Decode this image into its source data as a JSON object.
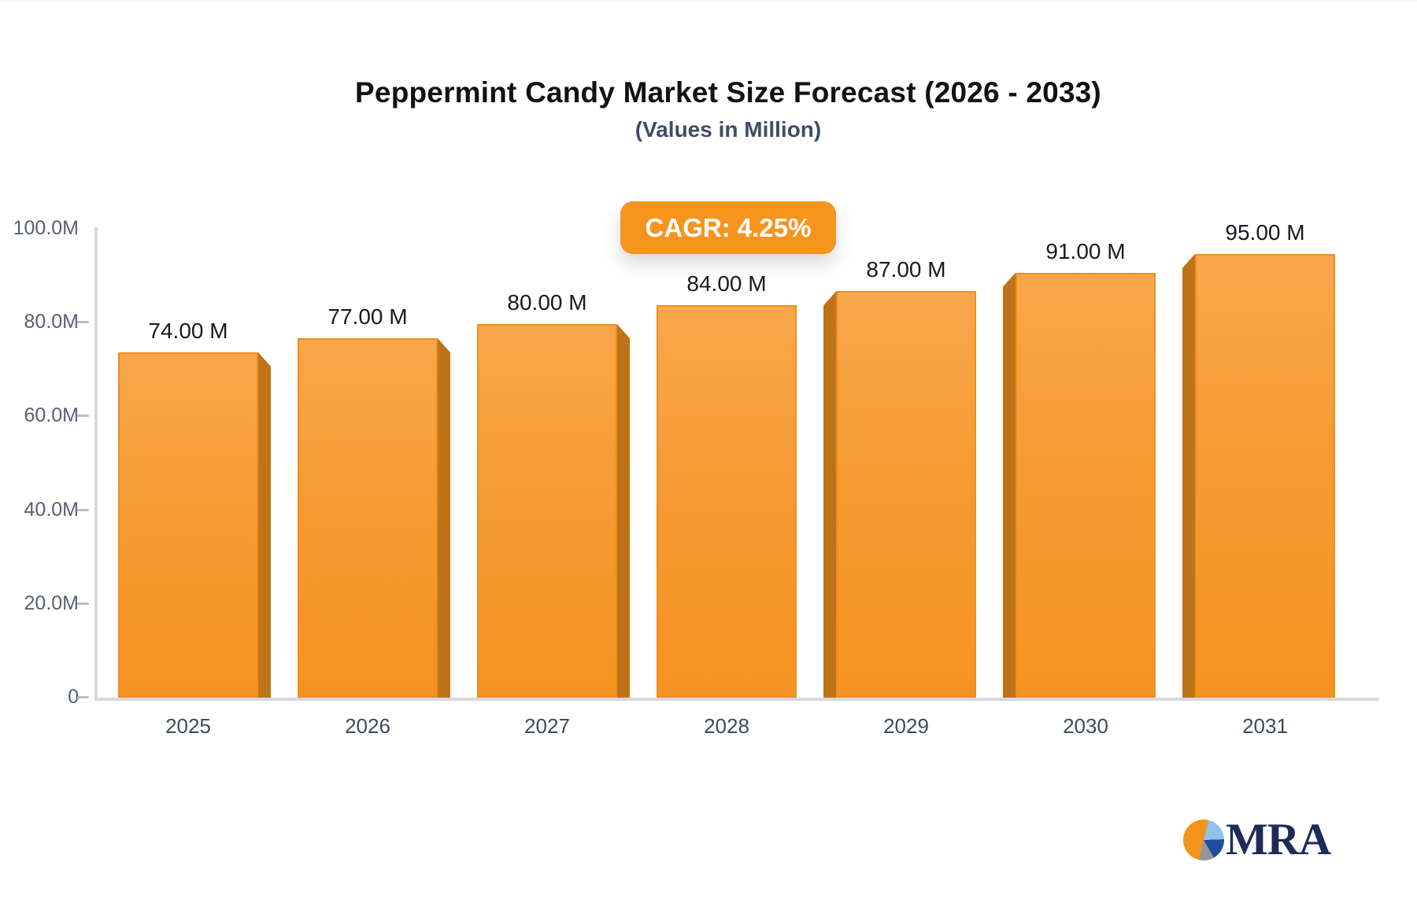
{
  "header": {
    "title": "Peppermint Candy Market Size Forecast (2026 - 2033)",
    "subtitle": "(Values in Million)"
  },
  "badge": {
    "label": "CAGR: 4.25%",
    "bg_color": "#f7941e",
    "text_color": "#ffffff"
  },
  "chart_data": {
    "type": "bar",
    "title": "Peppermint Candy Market Size Forecast (2026 - 2033)",
    "subtitle": "(Values in Million)",
    "categories": [
      "2025",
      "2026",
      "2027",
      "2028",
      "2029",
      "2030",
      "2031"
    ],
    "values": [
      74,
      77,
      80,
      84,
      87,
      91,
      95
    ],
    "value_labels": [
      "74.00 M",
      "77.00 M",
      "80.00 M",
      "84.00 M",
      "87.00 M",
      "91.00 M",
      "95.00 M"
    ],
    "unit": "Million",
    "ylim": [
      0,
      100
    ],
    "y_ticks": [
      "100.0M",
      "80.0M",
      "60.0M",
      "40.0M",
      "20.0M",
      "0"
    ],
    "grid": false,
    "legend": false,
    "style_3d": true,
    "colors": {
      "bar_top": "#f8a74b",
      "bar_bottom": "#f6921f",
      "bar_side": "#bf7318",
      "bar_border": "#ee8e1f",
      "axis_line": "#d5d9df",
      "y_tick_text": "#565f73",
      "x_tick_text": "#3f4a5a",
      "value_label_text": "#181a1f"
    }
  },
  "logo": {
    "text": "MRA",
    "text_color": "#1e2b58",
    "pie_colors": [
      "#f6921e",
      "#8fc3ea",
      "#1e4f9e",
      "#97979b"
    ]
  }
}
